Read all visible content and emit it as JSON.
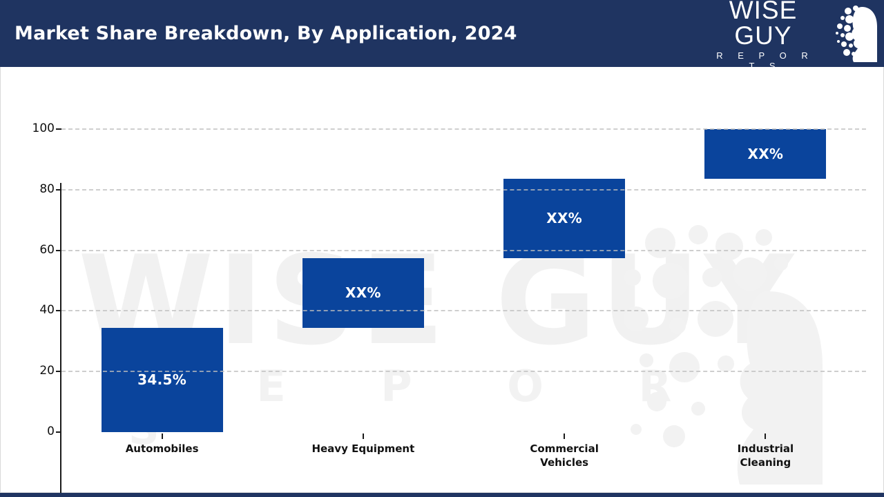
{
  "header": {
    "title": "Market Share Breakdown, By Application, 2024",
    "logo": {
      "line1": "WISE GUY",
      "line2": "R E P O R T S"
    },
    "bg_color": "#1f3461"
  },
  "watermark": {
    "line1": "WISE GUY",
    "line2": "R E P O R T S",
    "color": "#f1f1f1"
  },
  "chart_data": {
    "type": "bar",
    "subtype": "waterfall",
    "title": "Market Share Breakdown, By Application, 2024",
    "categories": [
      "Automobiles",
      "Heavy Equipment",
      "Commercial\nVehicles",
      "Industrial\nCleaning"
    ],
    "segments": [
      {
        "start": 0,
        "end": 34.5,
        "label": "34.5%"
      },
      {
        "start": 34.5,
        "end": 57.5,
        "label": "XX%"
      },
      {
        "start": 57.5,
        "end": 83.5,
        "label": "XX%"
      },
      {
        "start": 83.5,
        "end": 100,
        "label": "XX%"
      }
    ],
    "xlabel": "",
    "ylabel": "",
    "ylim": [
      0,
      100
    ],
    "yticks": [
      0,
      20,
      40,
      60,
      80,
      100
    ],
    "grid": "dashed horizontal, drawn over bars",
    "legend": "none",
    "bar_color": "#0a449c",
    "bar_label_color": "#ffffff",
    "axis_color": "#1a1a1a",
    "grid_color": "#bebebe"
  }
}
